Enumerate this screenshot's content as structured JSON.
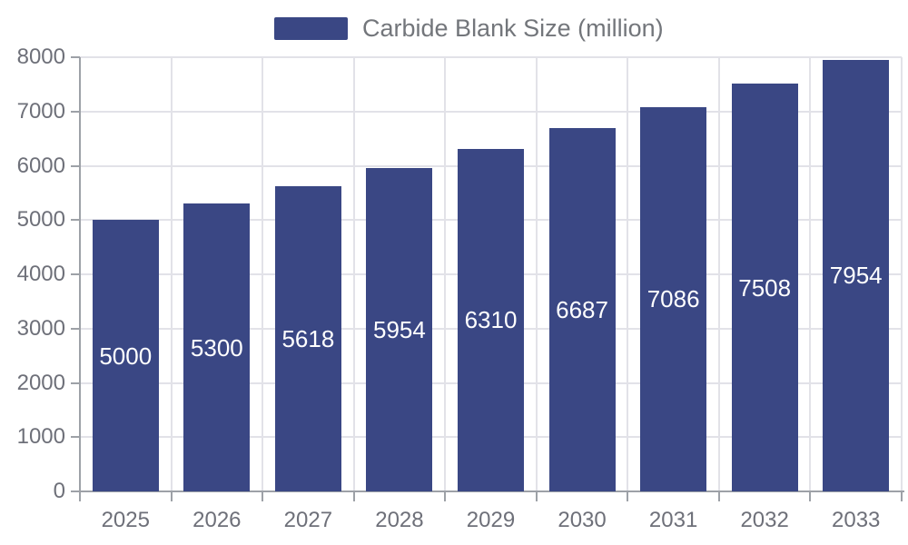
{
  "chart_data": {
    "type": "bar",
    "legend": "Carbide Blank Size (million)",
    "categories": [
      "2025",
      "2026",
      "2027",
      "2028",
      "2029",
      "2030",
      "2031",
      "2032",
      "2033"
    ],
    "values": [
      5000,
      5300,
      5618,
      5954,
      6310,
      6687,
      7086,
      7508,
      7954
    ],
    "series_name": "Carbide Blank Size (million)",
    "title": "",
    "xlabel": "",
    "ylabel": "",
    "ylim": [
      0,
      8000
    ],
    "ytick_step": 1000,
    "ytick_labels": [
      "0",
      "1000",
      "2000",
      "3000",
      "4000",
      "5000",
      "6000",
      "7000",
      "8000"
    ],
    "grid": true,
    "legend_position": "top",
    "value_label_position": "inside-center",
    "colors": {
      "bar": "#3A4784",
      "bar_value_text": "#FFFFFF",
      "grid_line": "#E2E2E8",
      "axis_line": "#9DA1A7",
      "axis_text": "#6E7079",
      "legend_text": "#73767B",
      "background": "#FFFFFF"
    }
  }
}
